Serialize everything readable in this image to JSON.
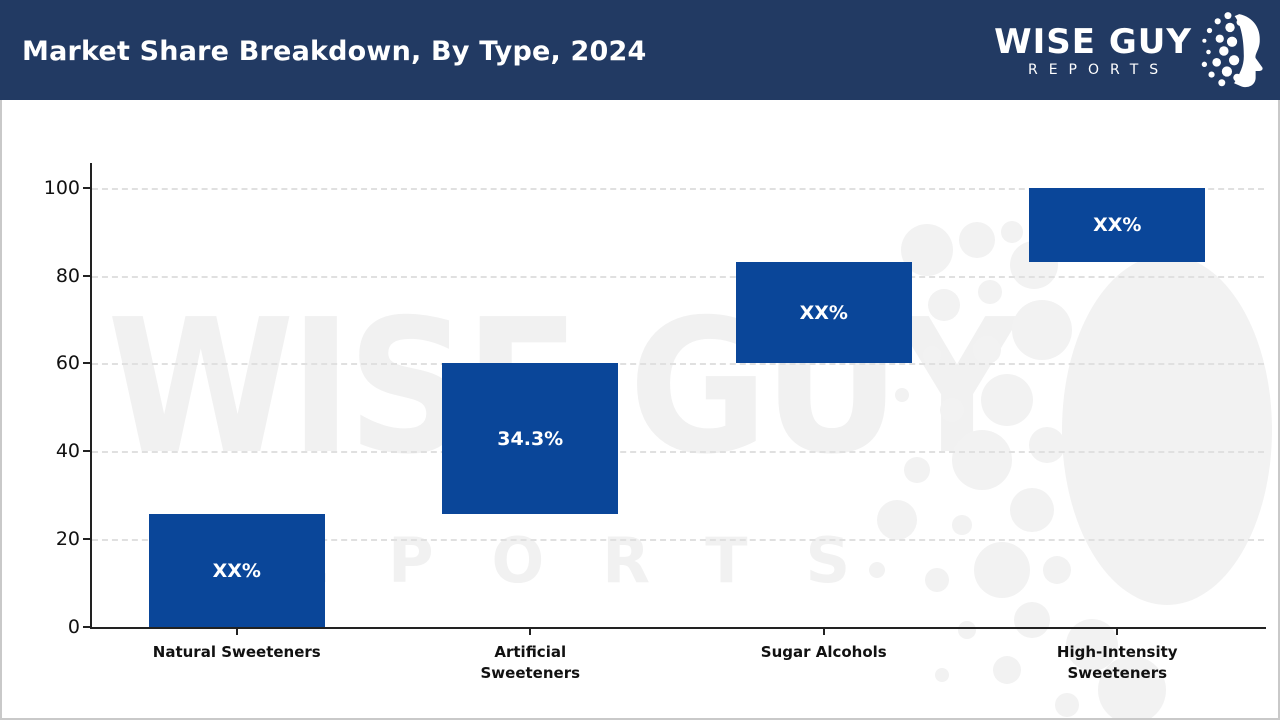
{
  "header": {
    "title": "Market Share Breakdown, By Type, 2024",
    "bg_color": "#223a63",
    "logo": {
      "line1": "WISE GUY",
      "line2": "REPORTS"
    }
  },
  "watermark": {
    "line1": "WISE GUY",
    "line2": "REPORTS"
  },
  "chart_data": {
    "type": "bar",
    "variant": "waterfall",
    "title": "Market Share Breakdown, By Type, 2024",
    "categories": [
      "Natural Sweeteners",
      "Artificial\nSweeteners",
      "Sugar Alcohols",
      "High-Intensity\nSweeteners"
    ],
    "series": [
      {
        "name": "Market Share (%)",
        "segments": [
          {
            "category": "Natural Sweeteners",
            "start": 0,
            "end": 25.7,
            "value_label": "XX%"
          },
          {
            "category": "Artificial Sweeteners",
            "start": 25.7,
            "end": 60.0,
            "value_label": "34.3%"
          },
          {
            "category": "Sugar Alcohols",
            "start": 60.0,
            "end": 83.0,
            "value_label": "XX%"
          },
          {
            "category": "High-Intensity Sweeteners",
            "start": 83.0,
            "end": 100.0,
            "value_label": "XX%"
          }
        ]
      }
    ],
    "xlabel": "",
    "ylabel": "",
    "ylim": [
      0,
      100
    ],
    "yticks": [
      0,
      20,
      40,
      60,
      80,
      100
    ],
    "grid": "horizontal-dashed",
    "legend": "none",
    "bar_color": "#0a4699",
    "bar_label_color": "#ffffff"
  }
}
